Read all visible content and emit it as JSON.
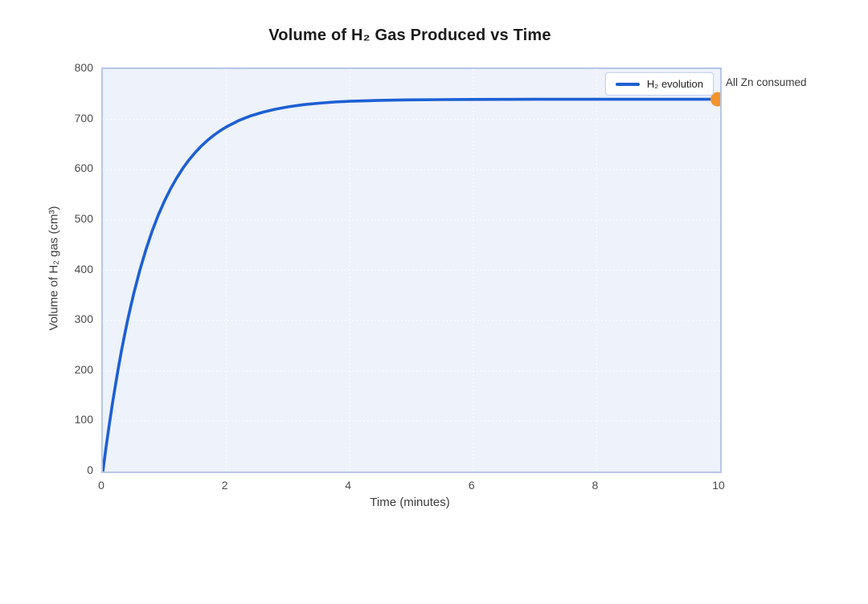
{
  "chart_data": {
    "type": "line",
    "title": "Volume of H₂ Gas Produced vs Time",
    "xlabel": "Time (minutes)",
    "ylabel": "Volume of H₂ gas (cm³)",
    "xlim": [
      0,
      10
    ],
    "ylim": [
      0,
      800
    ],
    "xticks": [
      0,
      2,
      4,
      6,
      8,
      10
    ],
    "yticks": [
      0,
      100,
      200,
      300,
      400,
      500,
      600,
      700,
      800
    ],
    "grid": true,
    "grid_style": "dotted-white",
    "plot_bg": "#edf2fb",
    "legend_position": "top-right",
    "series": [
      {
        "name": "H₂ evolution",
        "color": "#1d5fd4",
        "points": [
          [
            0,
            0
          ],
          [
            0.05,
            46.6
          ],
          [
            0.1,
            90.2
          ],
          [
            0.15,
            131.1
          ],
          [
            0.2,
            169.4
          ],
          [
            0.25,
            205.3
          ],
          [
            0.3,
            239.0
          ],
          [
            0.35,
            270.5
          ],
          [
            0.4,
            300.0
          ],
          [
            0.45,
            327.7
          ],
          [
            0.5,
            353.7
          ],
          [
            0.6,
            400.8
          ],
          [
            0.7,
            442.2
          ],
          [
            0.8,
            478.4
          ],
          [
            0.9,
            510.3
          ],
          [
            1.0,
            538.3
          ],
          [
            1.1,
            562.9
          ],
          [
            1.2,
            584.5
          ],
          [
            1.3,
            603.4
          ],
          [
            1.4,
            620.1
          ],
          [
            1.5,
            634.7
          ],
          [
            1.6,
            647.6
          ],
          [
            1.7,
            658.8
          ],
          [
            1.8,
            668.7
          ],
          [
            1.9,
            677.4
          ],
          [
            2.0,
            685.0
          ],
          [
            2.2,
            697.6
          ],
          [
            2.4,
            707.2
          ],
          [
            2.6,
            714.6
          ],
          [
            2.8,
            720.3
          ],
          [
            3.0,
            725.0
          ],
          [
            3.25,
            729.2
          ],
          [
            3.5,
            732.2
          ],
          [
            3.75,
            734.5
          ],
          [
            4.0,
            735.9
          ],
          [
            4.5,
            737.9
          ],
          [
            5.0,
            738.9
          ],
          [
            5.5,
            739.4
          ],
          [
            6.0,
            739.7
          ],
          [
            6.5,
            739.8
          ],
          [
            7.0,
            739.9
          ],
          [
            7.5,
            740
          ],
          [
            8.0,
            740
          ],
          [
            8.5,
            740
          ],
          [
            9.0,
            740
          ],
          [
            9.5,
            740
          ],
          [
            10.0,
            740
          ]
        ]
      }
    ],
    "annotation": {
      "text": "All Zn consumed",
      "point": [
        10,
        740
      ],
      "marker_color": "#f2932c"
    }
  }
}
